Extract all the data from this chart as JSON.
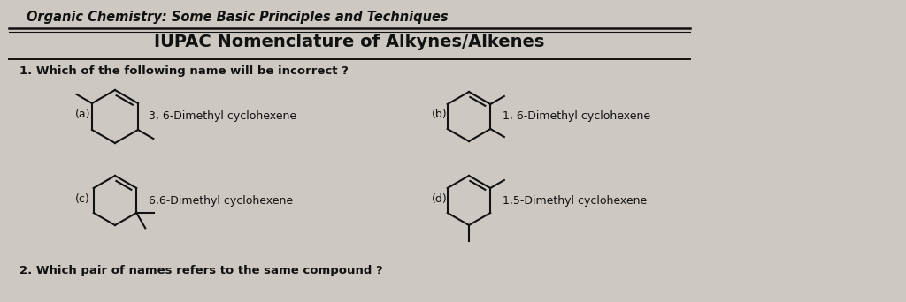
{
  "bg_color": "#cdc9c2",
  "title_text": "Organic Chemistry: Some Basic Principles and Techniques",
  "subtitle_text": "IUPAC Nomenclature of Alkynes/Alkenes",
  "question1": "1. Which of the following name will be incorrect ?",
  "question2": "2. Which pair of names refers to the same compound ?",
  "label_a": "(a)",
  "label_b": "(b)",
  "label_c": "(c)",
  "label_d": "(d)",
  "name_a": "3, 6-Dimethyl cyclohexene",
  "name_b": "1, 6-Dimethyl cyclohexene",
  "name_c": "6,6-Dimethyl cyclohexene",
  "name_d": "1,5-Dimethyl cyclohexene",
  "title_fontsize": 10.5,
  "subtitle_fontsize": 14,
  "body_fontsize": 9,
  "text_color": "#111111"
}
